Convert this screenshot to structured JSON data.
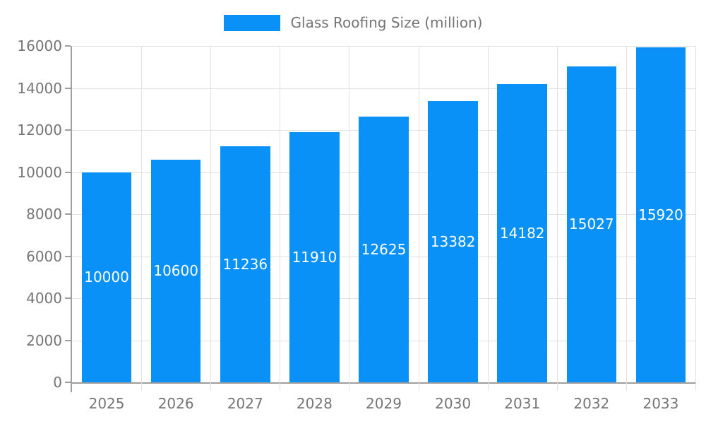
{
  "chart_data": {
    "type": "bar",
    "title": "",
    "legend": {
      "label": "Glass Roofing Size (million)",
      "position": "top"
    },
    "categories": [
      "2025",
      "2026",
      "2027",
      "2028",
      "2029",
      "2030",
      "2031",
      "2032",
      "2033"
    ],
    "values": [
      10000,
      10600,
      11236,
      11910,
      12625,
      13382,
      14182,
      15027,
      15920
    ],
    "xlabel": "",
    "ylabel": "",
    "ylim": [
      0,
      16000
    ],
    "yticks": [
      0,
      2000,
      4000,
      6000,
      8000,
      10000,
      12000,
      14000,
      16000
    ],
    "grid": true,
    "bar_width_fraction": 0.72,
    "colors": {
      "bar": "#0a91f7",
      "grid": "#e1e1e1",
      "axis": "#9e9e9e",
      "tick_text": "#757575",
      "bar_label_text": "#ffffff",
      "background": "#ffffff"
    }
  }
}
